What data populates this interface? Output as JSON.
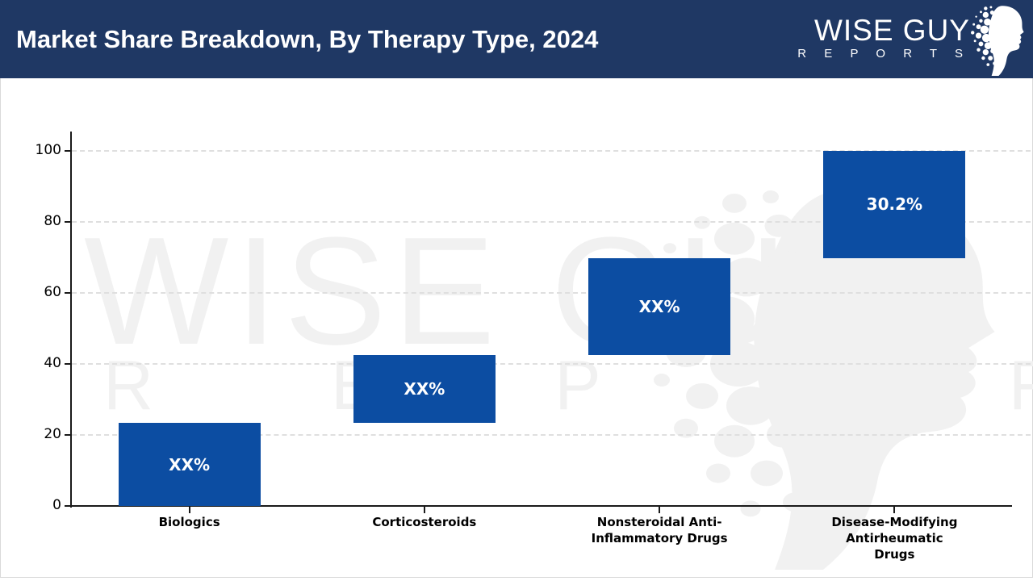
{
  "header": {
    "title": "Market Share Breakdown, By Therapy Type, 2024",
    "bg_color": "#1F3864",
    "logo": {
      "name": "WISE GUY",
      "sub": "R E P O R T S",
      "face_icon": "dotted-face-profile"
    }
  },
  "watermark": {
    "line1": "WISE GUY",
    "line2": "R E P O R T S"
  },
  "chart_data": {
    "type": "bar",
    "subtype": "floating-waterfall-bars",
    "title": "Market Share Breakdown, By Therapy Type, 2024",
    "categories": [
      "Biologics",
      "Corticosteroids",
      "Nonsteroidal Anti-Inflammatory Drugs",
      "Disease-Modifying Antirheumatic Drugs"
    ],
    "category_label_lines": [
      [
        "Biologics"
      ],
      [
        "Corticosteroids"
      ],
      [
        "Nonsteroidal Anti-",
        "Inflammatory Drugs"
      ],
      [
        "Disease-Modifying",
        "Antirheumatic",
        "Drugs"
      ]
    ],
    "segments": [
      {
        "category": "Biologics",
        "start": 0,
        "end": 23.4,
        "label": "XX%"
      },
      {
        "category": "Corticosteroids",
        "start": 23.4,
        "end": 42.6,
        "label": "XX%"
      },
      {
        "category": "Nonsteroidal Anti-Inflammatory Drugs",
        "start": 42.6,
        "end": 69.8,
        "label": "XX%"
      },
      {
        "category": "Disease-Modifying Antirheumatic Drugs",
        "start": 69.8,
        "end": 100,
        "label": "30.2%"
      }
    ],
    "ylim": [
      0,
      105
    ],
    "yticks": [
      0,
      20,
      40,
      60,
      80,
      100
    ],
    "xlabel": "",
    "ylabel": "",
    "grid": "horizontal-dashed",
    "legend": "none",
    "bar_color": "#0C4DA2",
    "bar_label_color": "#FFFFFF",
    "axis_color": "#1A1A1A",
    "grid_color": "#DFDFDF"
  }
}
